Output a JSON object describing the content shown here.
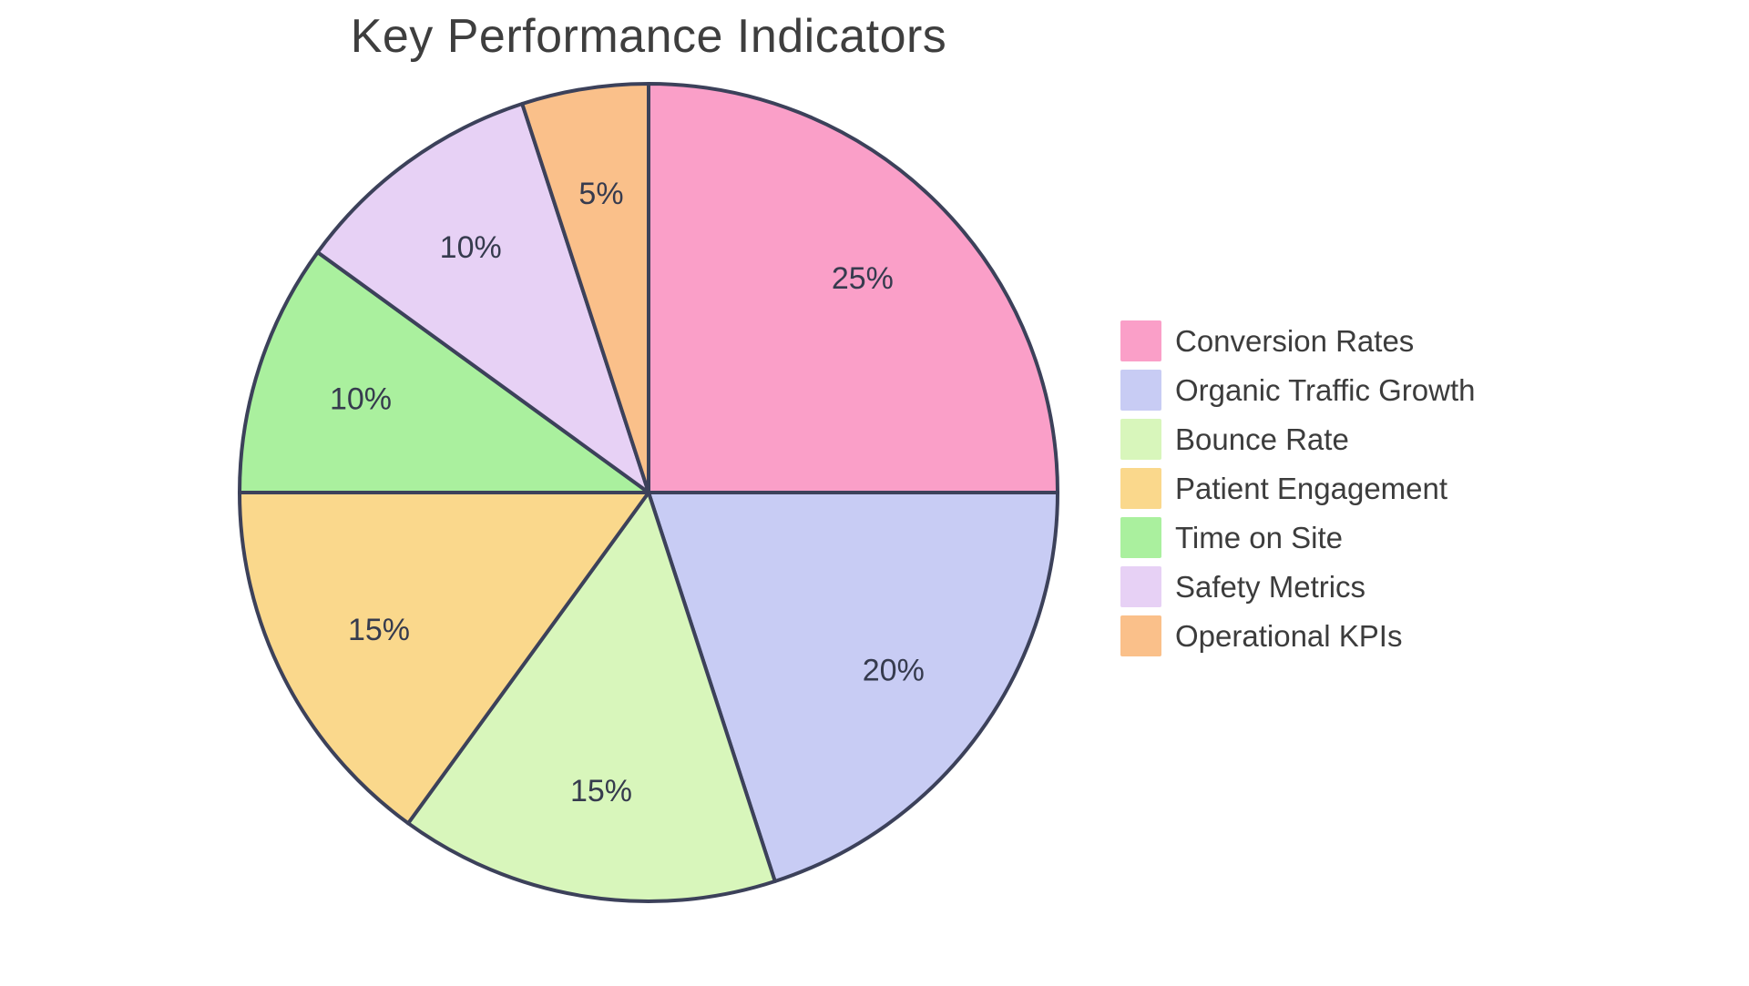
{
  "page": {
    "background": "#FFFFFF"
  },
  "chart_data": {
    "type": "pie",
    "title": "Key Performance Indicators",
    "categories": [
      "Conversion Rates",
      "Organic Traffic Growth",
      "Bounce Rate",
      "Patient Engagement",
      "Time on Site",
      "Safety Metrics",
      "Operational KPIs"
    ],
    "values": [
      25,
      20,
      15,
      15,
      10,
      10,
      5
    ],
    "slice_labels": [
      "25%",
      "20%",
      "15%",
      "15%",
      "10%",
      "10%",
      "5%"
    ],
    "colors": [
      "#FA9FC8",
      "#C8CCF4",
      "#D8F6BB",
      "#FAD88C",
      "#AAF09E",
      "#E7D1F5",
      "#FAC08A"
    ],
    "start_angle": "12-oclock",
    "direction": "clockwise",
    "legend_position": "right",
    "edge_color": "#3C415A",
    "edge_width": 4,
    "slice_label_color": "#363B4E",
    "title_color": "#3E3E3E",
    "legend_text_color": "#3C3C3C"
  }
}
